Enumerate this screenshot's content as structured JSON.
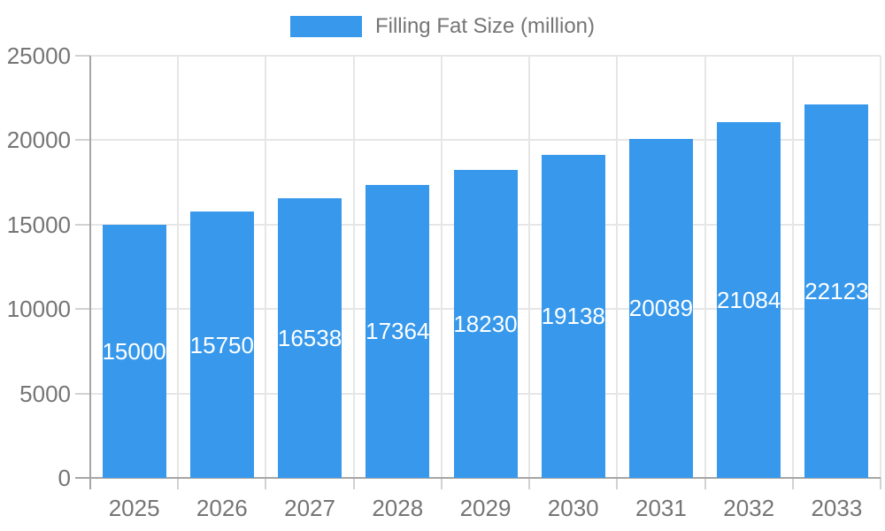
{
  "chart_data": {
    "type": "bar",
    "title": "",
    "legend": "Filling Fat Size (million)",
    "legend_position": "top",
    "categories": [
      "2025",
      "2026",
      "2027",
      "2028",
      "2029",
      "2030",
      "2031",
      "2032",
      "2033"
    ],
    "series": [
      {
        "name": "Filling Fat Size (million)",
        "values": [
          15000,
          15750,
          16538,
          17364,
          18230,
          19138,
          20089,
          21084,
          22123
        ]
      }
    ],
    "value_labels": [
      "15000",
      "15750",
      "16538",
      "17364",
      "18230",
      "19138",
      "20089",
      "21084",
      "22123"
    ],
    "xlabel": "",
    "ylabel": "",
    "ylim": [
      0,
      25000
    ],
    "yticks": [
      0,
      5000,
      10000,
      15000,
      20000,
      25000
    ],
    "ytick_labels": [
      "0",
      "5000",
      "10000",
      "15000",
      "20000",
      "25000"
    ],
    "grid": true,
    "colors": {
      "bar": "#3899EC",
      "value_label": "#FFFFFF",
      "axis_text": "#757575",
      "gridline": "#E6E6E6",
      "axis_line": "#A6A6A6",
      "tick_mark": "#D2D2D2",
      "background": "#FFFFFF"
    }
  }
}
